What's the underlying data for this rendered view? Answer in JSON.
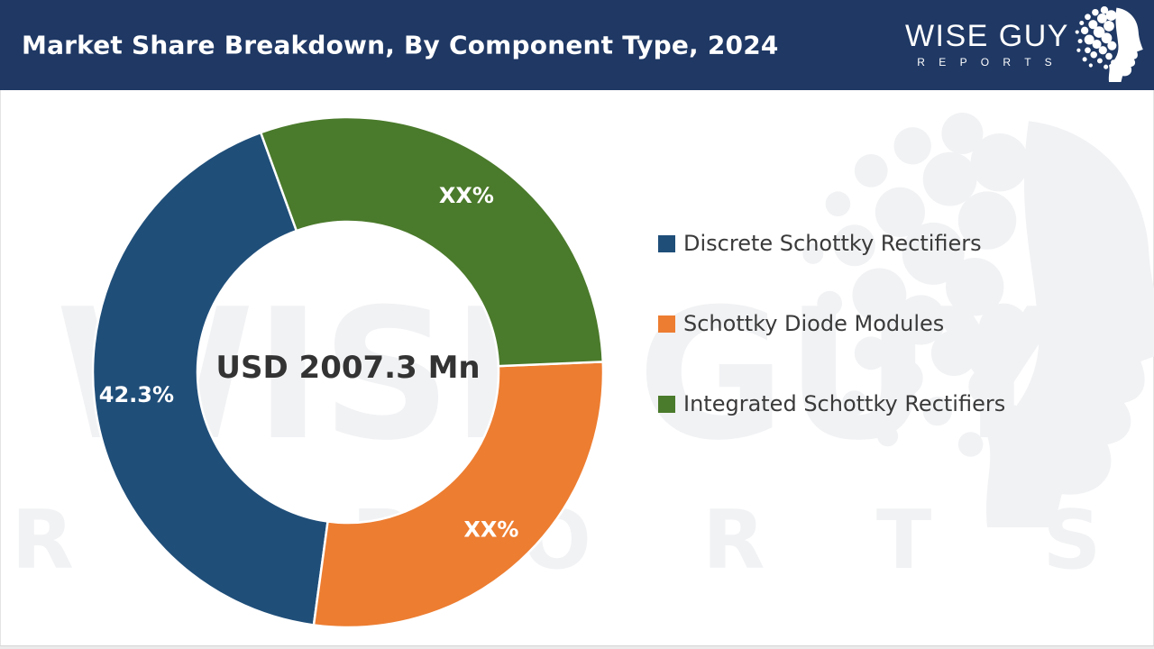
{
  "header": {
    "title": "Market Share Breakdown, By Component Type, 2024",
    "bg_color": "#1f3864",
    "logo": {
      "name": "WISE GUY",
      "sub": "R E P O R T S"
    }
  },
  "chart_data": {
    "type": "pie",
    "subtype": "donut",
    "title": "Market Share Breakdown, By Component Type, 2024",
    "categories": [
      "Discrete Schottky Rectifiers",
      "Schottky Diode Modules",
      "Integrated Schottky Rectifiers"
    ],
    "values": [
      42.3,
      27.8,
      29.9
    ],
    "slice_labels": [
      "42.3%",
      "XX%",
      "XX%"
    ],
    "values_masked": [
      false,
      true,
      true
    ],
    "colors": [
      "#1f4e79",
      "#ed7d31",
      "#4a7a2b"
    ],
    "center_label": "USD 2007.3 Mn",
    "start_angle_deg": 110,
    "counterclockwise": true,
    "inner_radius_ratio": 0.59,
    "legend_position": "right",
    "slice_edge_color": "#ffffff"
  },
  "legend": {
    "items": [
      {
        "label": "Discrete Schottky Rectifiers",
        "color": "#1f4e79"
      },
      {
        "label": "Schottky Diode Modules",
        "color": "#ed7d31"
      },
      {
        "label": "Integrated Schottky Rectifiers",
        "color": "#4a7a2b"
      }
    ]
  },
  "watermark": {
    "line1": "WISE GUY",
    "line2": "R E P O R T S"
  },
  "text_colors": {
    "title": "#ffffff",
    "center_label": "#333333",
    "legend": "#3a3a3a"
  }
}
